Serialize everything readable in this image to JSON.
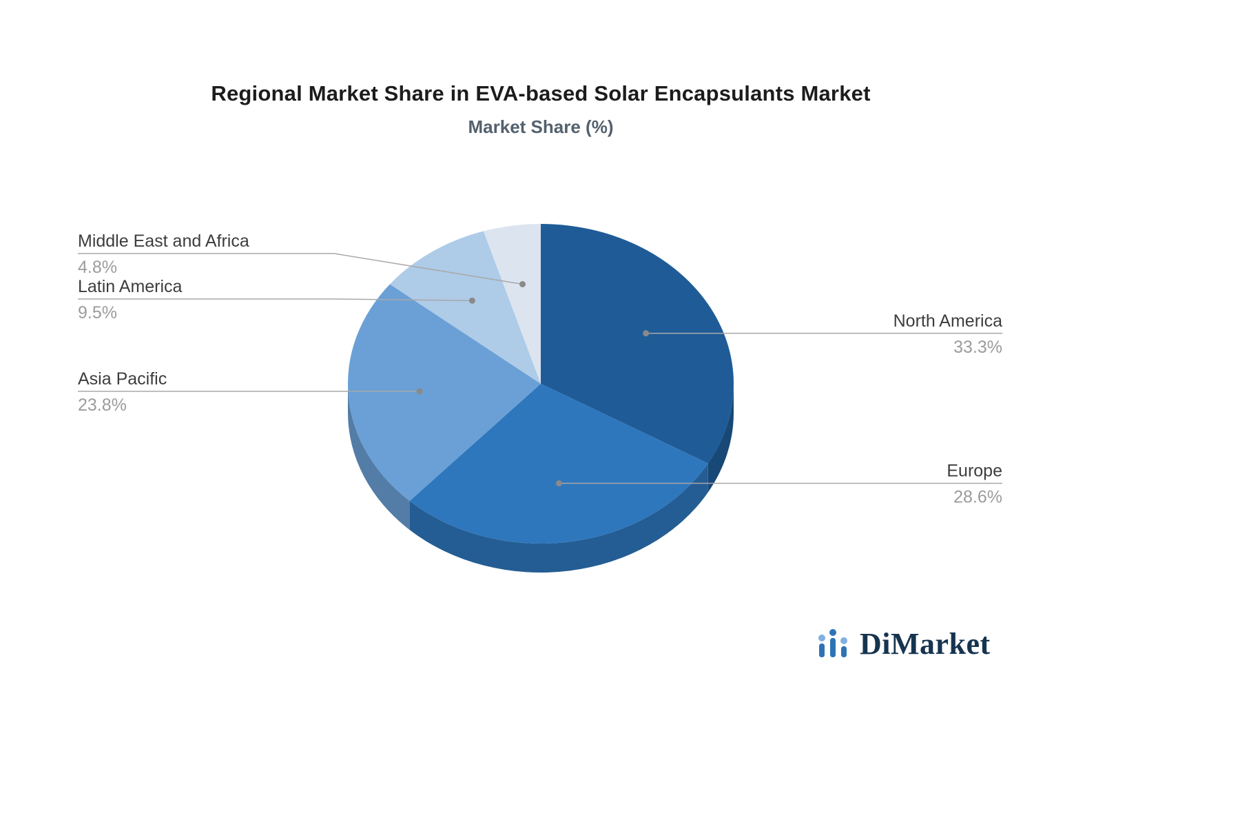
{
  "chart_data": {
    "type": "pie",
    "title": "Regional Market Share in EVA-based Solar Encapsulants Market",
    "subtitle": "Market Share (%)",
    "unit": "%",
    "direction": "clockwise",
    "start_angle_deg": 0,
    "effect": "3d",
    "legend": false,
    "slices": [
      {
        "label": "North America",
        "value": 33.3,
        "pct_label": "33.3%",
        "color": "#1f5c97",
        "label_side": "right"
      },
      {
        "label": "Europe",
        "value": 28.6,
        "pct_label": "28.6%",
        "color": "#2e77bd",
        "label_side": "right"
      },
      {
        "label": "Asia Pacific",
        "value": 23.8,
        "pct_label": "23.8%",
        "color": "#6ba0d6",
        "label_side": "left"
      },
      {
        "label": "Latin America",
        "value": 9.5,
        "pct_label": "9.5%",
        "color": "#aecbe8",
        "label_side": "left"
      },
      {
        "label": "Middle East and Africa",
        "value": 4.8,
        "pct_label": "4.8%",
        "color": "#dbe4ef",
        "label_side": "left"
      }
    ]
  },
  "watermark": {
    "brand": "DiMarket"
  }
}
